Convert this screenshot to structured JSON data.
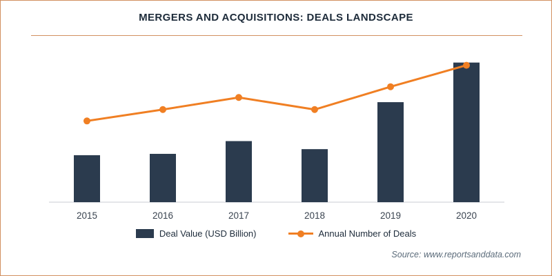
{
  "title": "MERGERS AND ACQUISITIONS: DEALS LANDSCAPE",
  "source": "Source: www.reportsanddata.com",
  "legend": {
    "bar_label": "Deal Value (USD Billion)",
    "line_label": "Annual Number of Deals"
  },
  "colors": {
    "bar": "#2b3b4e",
    "line": "#f07f23",
    "border": "#d2905f",
    "axis": "#c9ced3",
    "tick_label": "#3a4450"
  },
  "chart_data": {
    "type": "bar",
    "categories": [
      "2015",
      "2016",
      "2017",
      "2018",
      "2019",
      "2020"
    ],
    "series": [
      {
        "name": "Deal Value (USD Billion)",
        "type": "bar",
        "values": [
          70,
          72,
          91,
          79,
          149,
          208
        ]
      },
      {
        "name": "Annual Number of Deals",
        "type": "line",
        "values": [
          121,
          138,
          156,
          138,
          172,
          204
        ]
      }
    ],
    "title": "MERGERS AND ACQUISITIONS: DEALS LANDSCAPE",
    "xlabel": "",
    "ylabel": "",
    "ylim": [
      0,
      220
    ],
    "grid": false,
    "y_axis_visible": false,
    "legend_position": "bottom",
    "note": "values estimated from pixel heights; no value axis shown in source image"
  }
}
